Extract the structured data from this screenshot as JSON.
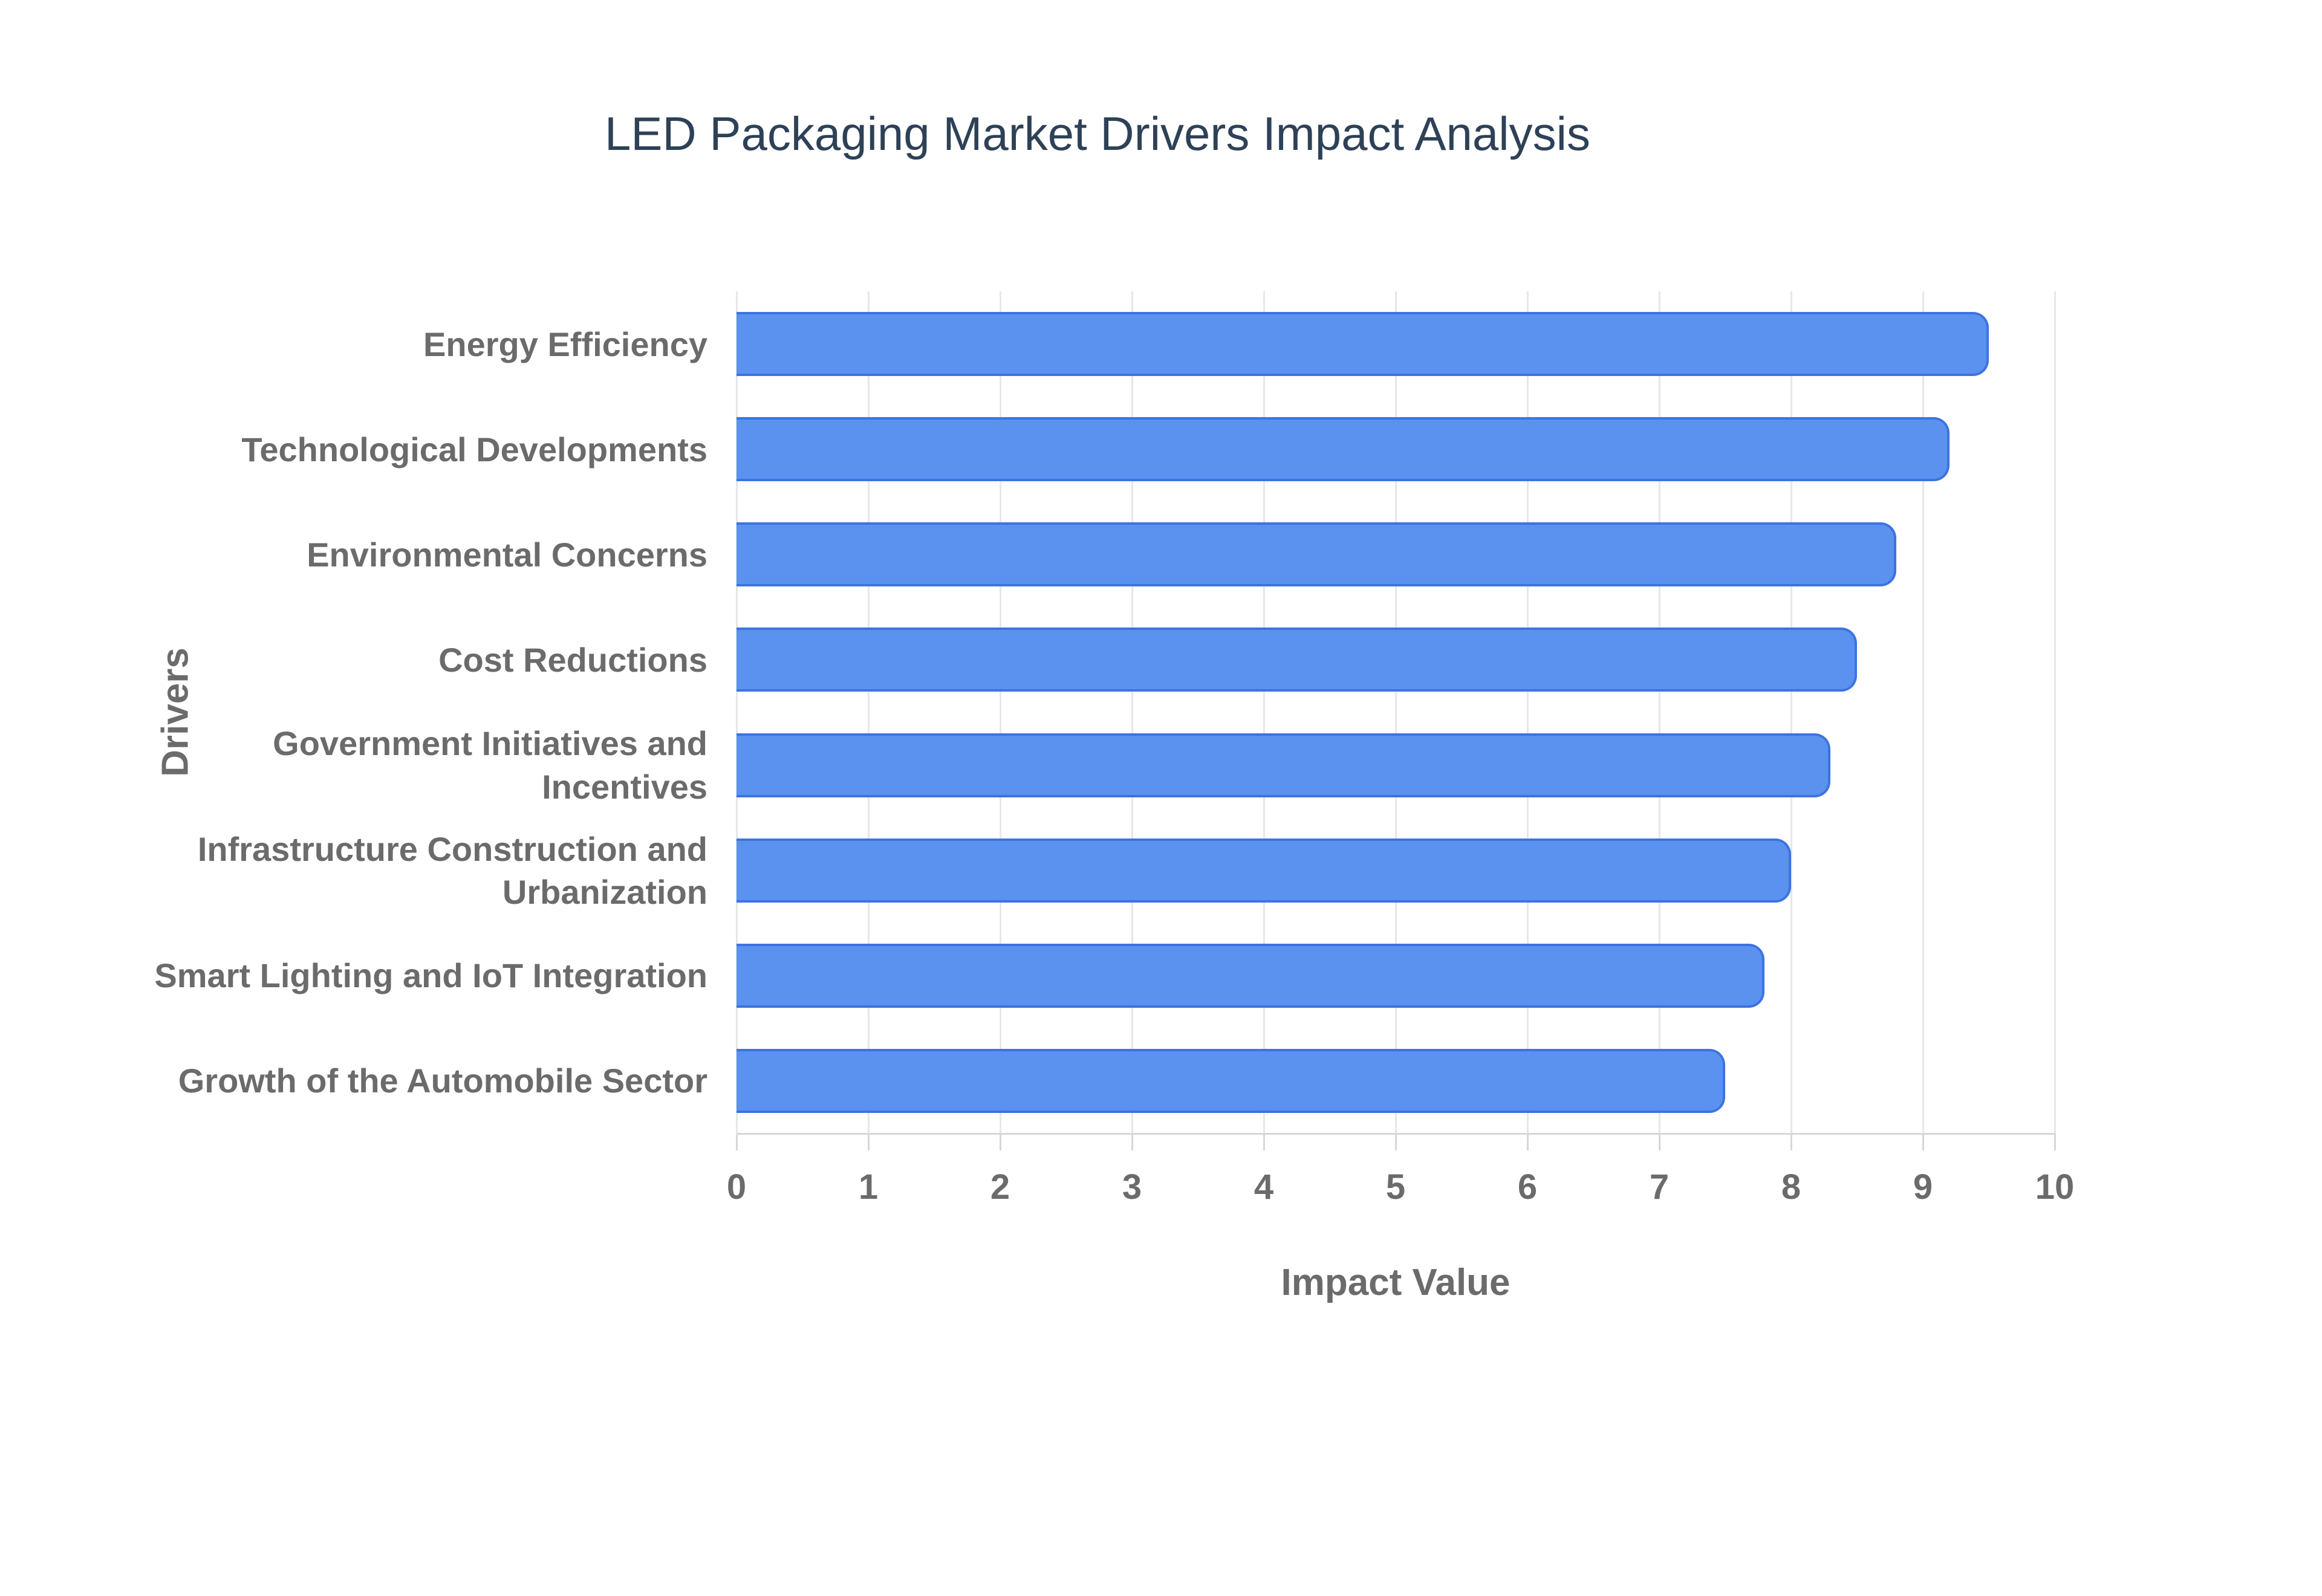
{
  "chart_data": {
    "type": "bar",
    "orientation": "horizontal",
    "title": "LED Packaging Market Drivers Impact Analysis",
    "categories": [
      "Energy Efficiency",
      "Technological Developments",
      "Environmental Concerns",
      "Cost Reductions",
      "Government Initiatives and Incentives",
      "Infrastructure Construction and Urbanization",
      "Smart Lighting and IoT Integration",
      "Growth of the Automobile Sector"
    ],
    "values": [
      9.5,
      9.2,
      8.8,
      8.5,
      8.3,
      8.0,
      7.8,
      7.5
    ],
    "xlabel": "Impact Value",
    "ylabel": "Drivers",
    "xlim": [
      0,
      10
    ],
    "xticks": [
      0,
      1,
      2,
      3,
      4,
      5,
      6,
      7,
      8,
      9,
      10
    ],
    "grid": true,
    "legend_visible": false,
    "colors": {
      "bar_fill": "#5b92f0",
      "bar_border": "#3d73e0",
      "grid_line": "#e7e7e7",
      "axis_line": "#d7d7d7",
      "label_gray": "#6b6b6b",
      "title_navy": "#2d4157",
      "background": "#ffffff"
    }
  }
}
